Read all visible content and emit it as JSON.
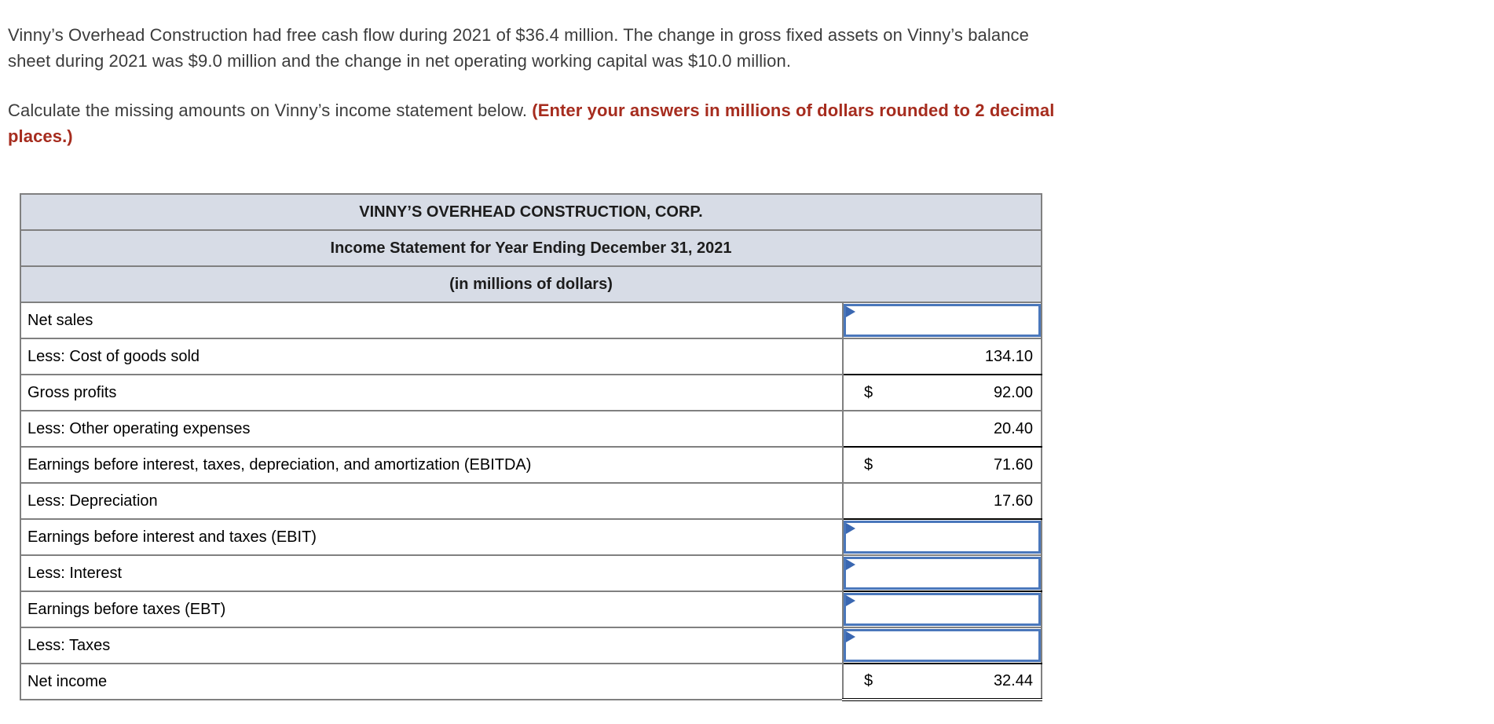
{
  "intro": {
    "p1_line1": "Vinny’s Overhead Construction had free cash flow during 2021 of $36.4 million. The change in gross fixed assets on Vinny’s balance",
    "p1_line2": "sheet during 2021 was $9.0 million and the change in net operating working capital was $10.0 million.",
    "p2_prompt": "Calculate the missing amounts on Vinny’s income statement below. ",
    "p2_instruction_line1": "(Enter your answers in millions of dollars rounded to 2 decimal",
    "p2_instruction_line2": "places.)"
  },
  "table": {
    "title": "VINNY’S OVERHEAD CONSTRUCTION, CORP.",
    "subtitle": "Income Statement for Year Ending December 31, 2021",
    "units": "(in millions of dollars)",
    "rows": [
      {
        "label": "Net sales",
        "type": "input",
        "value": ""
      },
      {
        "label": "Less: Cost of goods sold",
        "type": "number",
        "value": "134.10"
      },
      {
        "label": "Gross profits",
        "type": "dollar",
        "currency": "$",
        "value": "92.00"
      },
      {
        "label": "Less: Other operating expenses",
        "type": "number",
        "value": "20.40"
      },
      {
        "label": "Earnings before interest, taxes, depreciation, and amortization (EBITDA)",
        "type": "dollar",
        "currency": "$",
        "value": "71.60"
      },
      {
        "label": "Less: Depreciation",
        "type": "number",
        "value": "17.60"
      },
      {
        "label": "Earnings before interest and taxes (EBIT)",
        "type": "input",
        "value": ""
      },
      {
        "label": "Less: Interest",
        "type": "input",
        "value": ""
      },
      {
        "label": "Earnings before taxes (EBT)",
        "type": "input",
        "value": ""
      },
      {
        "label": "Less: Taxes",
        "type": "input",
        "value": ""
      },
      {
        "label": "Net income",
        "type": "dollar",
        "currency": "$",
        "value": "32.44"
      }
    ]
  },
  "colors": {
    "header_bg": "#d7dce6",
    "grid_border": "#808080",
    "emphasis_border": "#000000",
    "answer_border": "#4a77bb",
    "answer_marker": "#3a67b1",
    "instruction_red": "#a62c1e",
    "body_text": "#3c3c3c"
  }
}
